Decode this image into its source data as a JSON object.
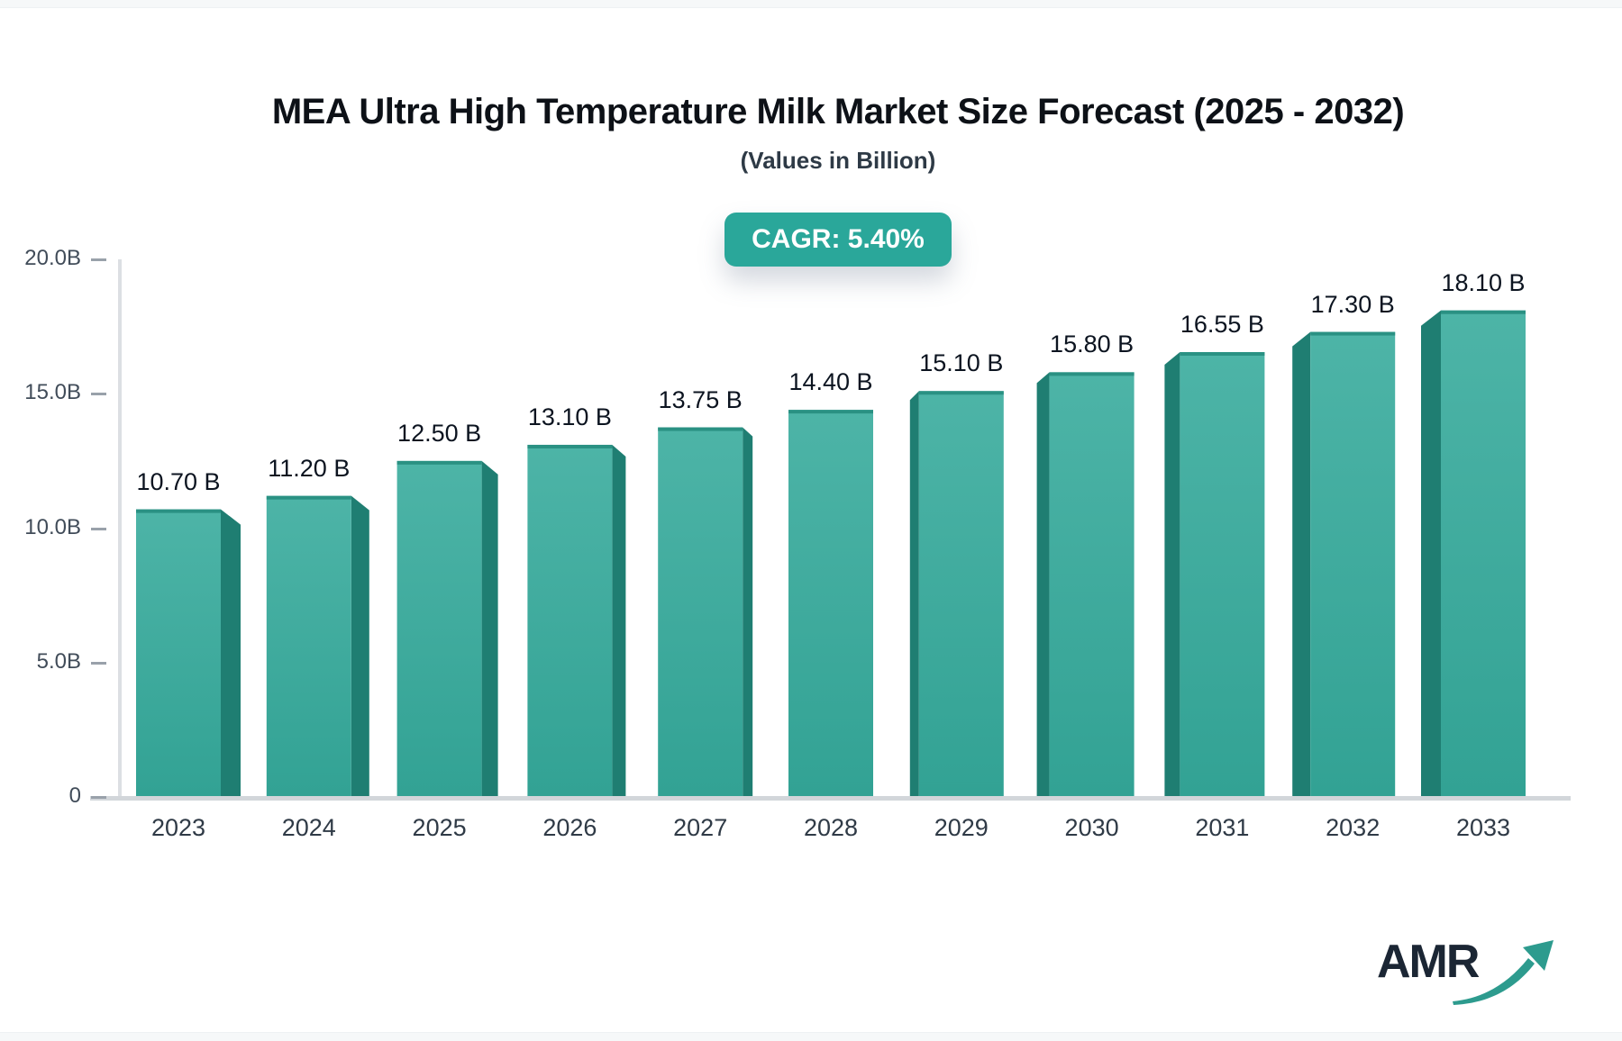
{
  "header": {
    "title": "MEA Ultra High Temperature Milk Market Size Forecast (2025 - 2032)",
    "subtitle": "(Values in Billion)",
    "cagr_badge": "CAGR: 5.40%"
  },
  "chart_data": {
    "type": "bar",
    "title": "MEA Ultra High Temperature Milk Market Size Forecast (2025 - 2032)",
    "subtitle": "(Values in Billion)",
    "categories": [
      "2023",
      "2024",
      "2025",
      "2026",
      "2027",
      "2028",
      "2029",
      "2030",
      "2031",
      "2032",
      "2033"
    ],
    "values": [
      10.7,
      11.2,
      12.5,
      13.1,
      13.75,
      14.4,
      15.1,
      15.8,
      16.55,
      17.3,
      18.1
    ],
    "bar_labels": [
      "10.70 B",
      "11.20 B",
      "12.50 B",
      "13.10 B",
      "13.75 B",
      "14.40 B",
      "15.10 B",
      "15.80 B",
      "16.55 B",
      "17.30 B",
      "18.10 B"
    ],
    "cagr": "5.40%",
    "xlabel": "",
    "ylabel": "",
    "ylim": [
      0,
      20
    ],
    "yticks": [
      {
        "value": 0,
        "label": "0"
      },
      {
        "value": 5,
        "label": "5.0B"
      },
      {
        "value": 10,
        "label": "10.0B"
      },
      {
        "value": 15,
        "label": "15.0B"
      },
      {
        "value": 20,
        "label": "20.0B"
      }
    ],
    "grid": false,
    "legend": "none",
    "bar_style": "3d-extruded, vanishing point at center",
    "colors": {
      "bar_face_top": "#4db4a7",
      "bar_face_bottom": "#32a294",
      "bar_side": "#1f7e72",
      "bar_top_edge": "#2a9183",
      "badge_background": "#2aa79a",
      "axis_line": "#d2d6da",
      "tick_mark": "#99a1aa",
      "value_label": "#0c1420",
      "year_label": "#2f3a46",
      "ytick_label": "#414c59"
    }
  },
  "logo": {
    "text": "AMR",
    "text_color": "#1b2634",
    "arrow_color": "#2d9b8e"
  }
}
